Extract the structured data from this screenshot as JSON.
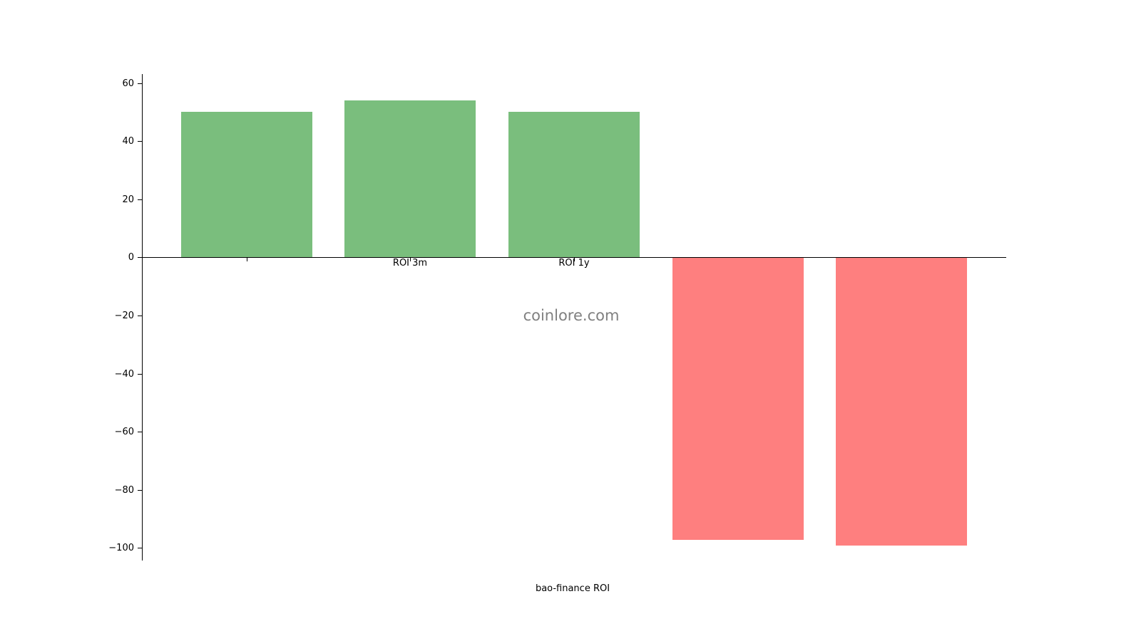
{
  "figure": {
    "watermark": "coinlore.com",
    "background": "#ffffff"
  },
  "chart_data": {
    "type": "bar",
    "title": "",
    "xlabel": "bao-finance ROI",
    "ylabel": "",
    "categories": [
      "",
      "ROI 3m",
      "ROI 1y",
      "",
      ""
    ],
    "values": [
      50,
      54,
      50,
      -97,
      -99
    ],
    "series": [
      {
        "name": "ROI",
        "values": [
          50,
          54,
          50,
          -97,
          -99
        ]
      }
    ],
    "xticks": [
      {
        "index": 0,
        "label": ""
      },
      {
        "index": 1,
        "label": "ROI 3m"
      },
      {
        "index": 2,
        "label": "ROI 1y"
      }
    ],
    "yticks": [
      {
        "value": 60,
        "label": "60"
      },
      {
        "value": 40,
        "label": "40"
      },
      {
        "value": 20,
        "label": "20"
      },
      {
        "value": 0,
        "label": "0"
      },
      {
        "value": -20,
        "label": "−20"
      },
      {
        "value": -40,
        "label": "−40"
      },
      {
        "value": -60,
        "label": "−60"
      },
      {
        "value": -80,
        "label": "−80"
      },
      {
        "value": -100,
        "label": "−100"
      }
    ],
    "ylim": [
      -104.3,
      63.1
    ],
    "xlim": [
      -0.64,
      4.64
    ],
    "bar_width_units": 0.8,
    "grid": false,
    "legend": "none",
    "colors": {
      "positive": "#7abe7d",
      "negative": "#fe7f7f",
      "axis": "#000000",
      "tick_label": "#000000",
      "watermark": "#808080"
    }
  }
}
